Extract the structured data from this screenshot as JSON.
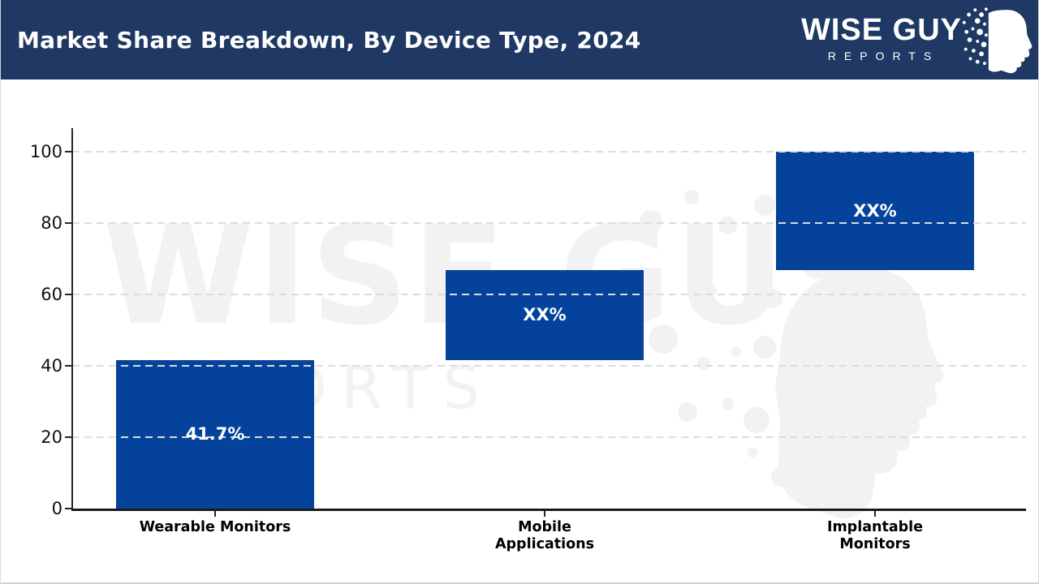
{
  "header": {
    "title": "Market Share Breakdown, By Device Type, 2024",
    "background_color": "#1F3864",
    "logo": {
      "line1": "WISE GUY",
      "line2": "REPORTS"
    }
  },
  "watermark": {
    "line1": "WISE GUY",
    "line2": "REPORTS"
  },
  "chart_data": {
    "type": "bar",
    "subtype": "waterfall",
    "title": "Market Share Breakdown, By Device Type, 2024",
    "xlabel": "",
    "ylabel": "",
    "ylim": [
      0,
      106
    ],
    "yticks": [
      0,
      20,
      40,
      60,
      80,
      100
    ],
    "grid": true,
    "legend": "none",
    "bar_color": "#04429B",
    "label_color": "#FFFFFF",
    "grid_color": "#DCDCDC",
    "axis_color": "#1A1A1A",
    "categories": [
      "Wearable Monitors",
      "Mobile Applications",
      "Implantable Monitors"
    ],
    "segments": [
      {
        "category": "Wearable Monitors",
        "lines": [
          "Wearable Monitors"
        ],
        "start": 0,
        "end": 41.7,
        "value": 41.7,
        "label": "41.7%"
      },
      {
        "category": "Mobile Applications",
        "lines": [
          "Mobile",
          "Applications"
        ],
        "start": 41.7,
        "end": 66.9,
        "value": 25.2,
        "label": "XX%"
      },
      {
        "category": "Implantable Monitors",
        "lines": [
          "Implantable",
          "Monitors"
        ],
        "start": 66.9,
        "end": 100,
        "value": 33.1,
        "label": "XX%"
      }
    ]
  }
}
